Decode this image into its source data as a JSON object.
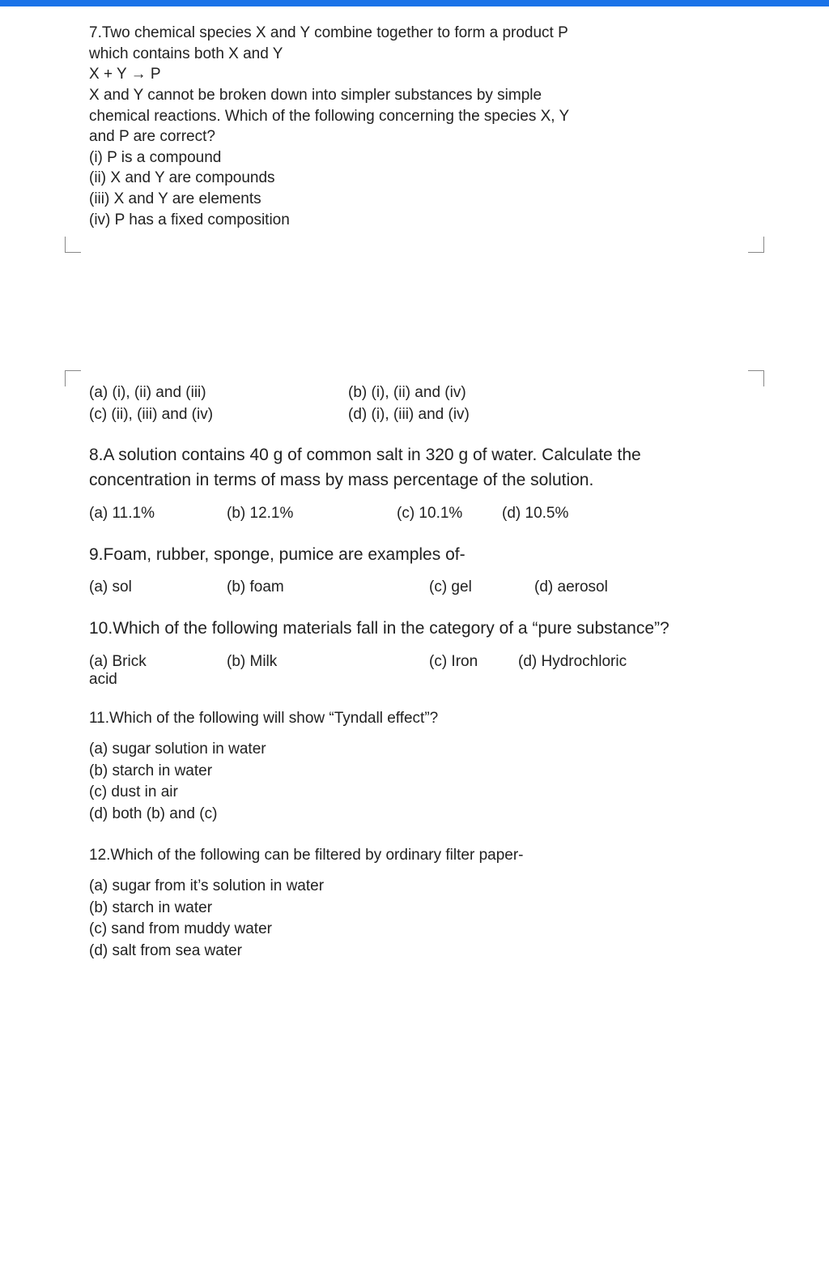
{
  "topbar_color": "#1a73e8",
  "q7": {
    "line1": "7.Two chemical species X and Y combine together to form a product P",
    "line2": "which contains both X and Y",
    "line3": "X + Y → P",
    "line4": "X and Y cannot be broken down into simpler substances by simple",
    "line5": "chemical reactions. Which of the following concerning the species X, Y",
    "line6": "and P are correct?",
    "stmt1": "(i) P is a compound",
    "stmt2": "(ii) X and Y are compounds",
    "stmt3": "(iii) X and Y are elements",
    "stmt4": "(iv) P has a fixed composition",
    "opt_a": "(a) (i), (ii) and (iii)",
    "opt_b": "(b) (i), (ii) and (iv)",
    "opt_c": "(c) (ii), (iii) and (iv)",
    "opt_d": "(d) (i), (iii) and (iv)"
  },
  "q8": {
    "text": "8.A solution contains 40 g of common salt in 320 g of water. Calculate the concentration in terms of mass by mass percentage of the solution.",
    "a": "(a) 11.1%",
    "b": "(b) 12.1%",
    "c": "(c) 10.1%",
    "d": "(d) 10.5%"
  },
  "q9": {
    "text": "9.Foam, rubber, sponge, pumice are examples of-",
    "a": "(a) sol",
    "b": "(b) foam",
    "c": "(c) gel",
    "d": "(d) aerosol"
  },
  "q10": {
    "text": "10.Which of the following materials fall in the category of a “pure substance”?",
    "a": "(a) Brick",
    "b": "(b) Milk",
    "c": "(c) Iron",
    "d": "(d) Hydrochloric",
    "d2": "acid"
  },
  "q11": {
    "text": "11.Which of the following will show “Tyndall effect”?",
    "a": "(a) sugar solution in water",
    "b": "(b) starch in water",
    "c": "(c) dust in air",
    "d": "(d) both (b) and (c)"
  },
  "q12": {
    "text": "12.Which of the following can be filtered by ordinary filter paper-",
    "a": "(a) sugar from it’s solution in water",
    "b": "(b) starch in water",
    "c": "(c) sand from muddy water",
    "d": "(d) salt from sea water"
  }
}
